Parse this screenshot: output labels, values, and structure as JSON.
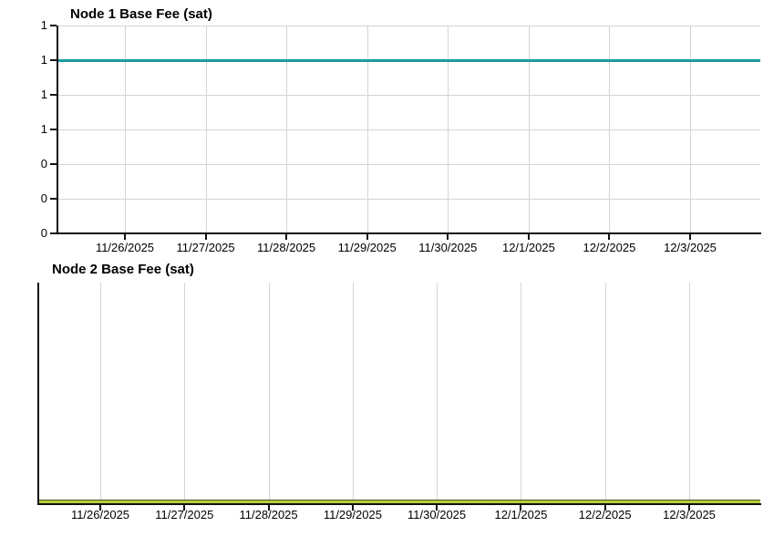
{
  "page": {
    "background_color": "#ffffff",
    "gridline_color": "#d4d4d4",
    "axis_color": "#111111"
  },
  "chart_data": [
    {
      "type": "line",
      "title": "Node 1 Base Fee (sat)",
      "xlabel": "",
      "ylabel": "",
      "x": [
        "11/26/2025",
        "11/27/2025",
        "11/28/2025",
        "11/29/2025",
        "11/30/2025",
        "12/1/2025",
        "12/2/2025",
        "12/3/2025"
      ],
      "series": [
        {
          "name": "Node 1 Base Fee",
          "values": [
            1,
            1,
            1,
            1,
            1,
            1,
            1,
            1
          ],
          "color": "#1a9ba1"
        }
      ],
      "ylim": [
        0,
        1.2
      ],
      "y_tick_values": [
        1.2,
        1.0,
        0.8,
        0.6,
        0.4,
        0.2,
        0
      ],
      "y_tick_labels": [
        "1",
        "1",
        "1",
        "1",
        "0",
        "0",
        "0"
      ],
      "grid": "horizontal-and-vertical",
      "legend_position": "none"
    },
    {
      "type": "line",
      "title": "Node 2 Base Fee (sat)",
      "xlabel": "",
      "ylabel": "",
      "x": [
        "11/26/2025",
        "11/27/2025",
        "11/28/2025",
        "11/29/2025",
        "11/30/2025",
        "12/1/2025",
        "12/2/2025",
        "12/3/2025"
      ],
      "series": [
        {
          "name": "Node 2 Base Fee",
          "values": [
            0,
            0,
            0,
            0,
            0,
            0,
            0,
            0
          ],
          "color": "#b6cf3c",
          "edge_color": "#4f541f"
        }
      ],
      "ylim": [
        0,
        1
      ],
      "y_tick_values": [],
      "y_tick_labels": [],
      "grid": "vertical-only",
      "legend_position": "none"
    }
  ]
}
